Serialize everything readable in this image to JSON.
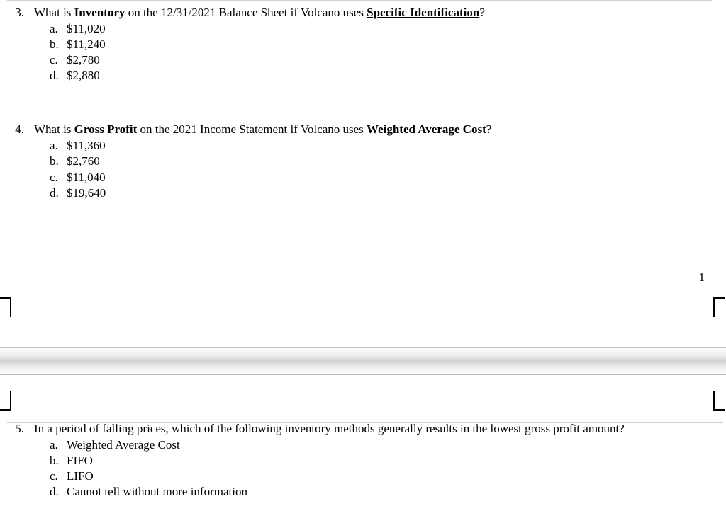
{
  "colors": {
    "text": "#000000",
    "background": "#ffffff",
    "divider_light": "#e8e8e8",
    "divider_mid": "#d0d0d0",
    "border": "#c0c0c0"
  },
  "typography": {
    "font_family": "Times New Roman",
    "base_size_pt": 13,
    "bold_weight": 700
  },
  "page_number": "1",
  "questions": [
    {
      "number": "3.",
      "prefix": "What is ",
      "bold1": "Inventory",
      "mid1": " on the 12/31/2021 Balance Sheet if Volcano uses ",
      "bold_underline": "Specific Identification",
      "suffix": "?",
      "options": [
        {
          "letter": "a.",
          "text": "$11,020"
        },
        {
          "letter": "b.",
          "text": "$11,240"
        },
        {
          "letter": "c.",
          "text": "$2,780"
        },
        {
          "letter": "d.",
          "text": "$2,880"
        }
      ]
    },
    {
      "number": "4.",
      "prefix": "What is ",
      "bold1": "Gross Profit",
      "mid1": " on the 2021 Income Statement if Volcano uses ",
      "bold_underline": "Weighted Average Cost",
      "suffix": "?",
      "options": [
        {
          "letter": "a.",
          "text": "$11,360"
        },
        {
          "letter": "b.",
          "text": "$2,760"
        },
        {
          "letter": "c.",
          "text": "$11,040"
        },
        {
          "letter": "d.",
          "text": "$19,640"
        }
      ]
    },
    {
      "number": "5.",
      "plain_text": "In a period of falling prices, which of the following inventory methods generally results in the lowest gross profit amount?",
      "options": [
        {
          "letter": "a.",
          "text": "Weighted Average Cost"
        },
        {
          "letter": "b.",
          "text": "FIFO"
        },
        {
          "letter": "c.",
          "text": "LIFO"
        },
        {
          "letter": "d.",
          "text": "Cannot tell without more information"
        }
      ]
    }
  ]
}
